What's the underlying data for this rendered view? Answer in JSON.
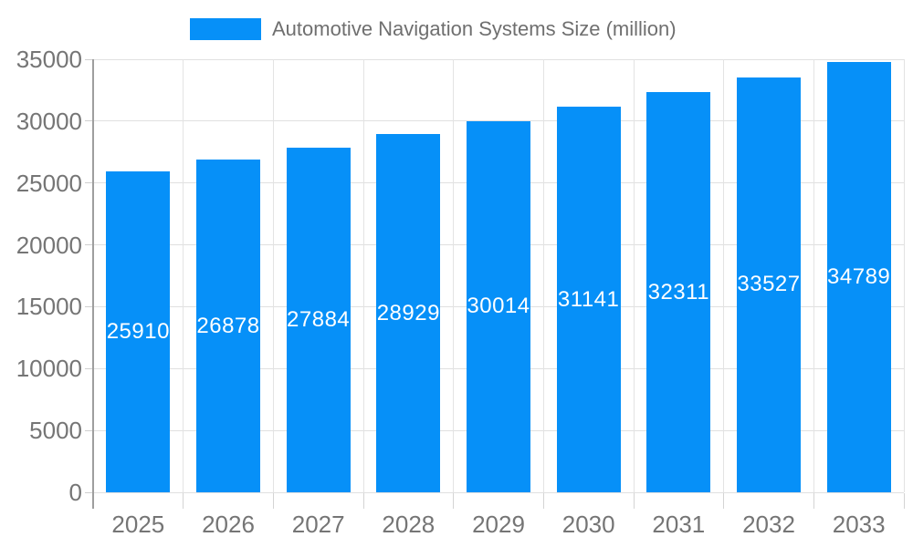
{
  "chart_data": {
    "type": "bar",
    "title": "Automotive Navigation Systems Size (million)",
    "series_name": "Automotive Navigation Systems Size (million)",
    "categories": [
      "2025",
      "2026",
      "2027",
      "2028",
      "2029",
      "2030",
      "2031",
      "2032",
      "2033"
    ],
    "values": [
      25910,
      26878,
      27884,
      28929,
      30014,
      31141,
      32311,
      33527,
      34789
    ],
    "value_labels": [
      "25910",
      "26878",
      "27884",
      "28929",
      "30014",
      "31141",
      "32311",
      "33527",
      "34789"
    ],
    "xlabel": "",
    "ylabel": "",
    "ylim": [
      0,
      35000
    ],
    "ytick_interval": 5000,
    "ytick_labels": [
      "0",
      "5000",
      "10000",
      "15000",
      "20000",
      "25000",
      "30000",
      "35000"
    ],
    "grid": "on",
    "legend_position": "top",
    "bar_color": "#0690f8",
    "bar_label_color": "#ffffff",
    "axis_text_color": "#757575",
    "gridline_color": "#e0e0e0",
    "axis_line_color": "#9e9e9e"
  }
}
